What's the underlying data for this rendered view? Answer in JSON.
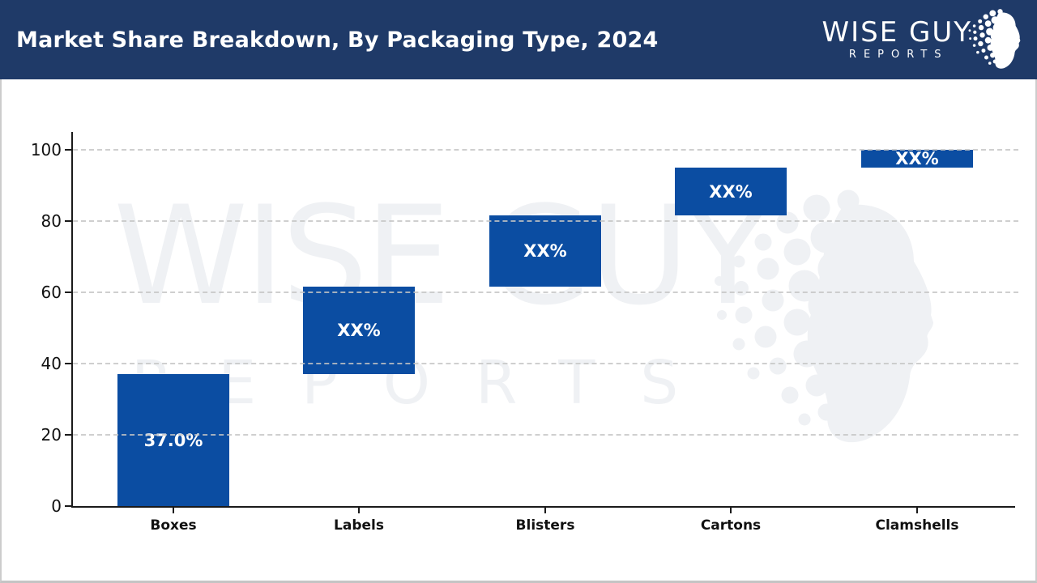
{
  "header": {
    "title": "Market Share Breakdown, By Packaging Type, 2024",
    "logo": {
      "line1": "WISE GUY",
      "line2": "REPORTS"
    }
  },
  "watermark": {
    "line1": "WISE GUY",
    "line2": "REPORTS"
  },
  "chart_data": {
    "type": "bar",
    "variant": "waterfall",
    "title": "Market Share Breakdown, By Packaging Type, 2024",
    "categories": [
      "Boxes",
      "Labels",
      "Blisters",
      "Cartons",
      "Clamshells"
    ],
    "segments": [
      {
        "category": "Boxes",
        "start": 0,
        "end": 37,
        "label": "37.0%"
      },
      {
        "category": "Labels",
        "start": 37,
        "end": 61.5,
        "label": "XX%"
      },
      {
        "category": "Blisters",
        "start": 61.5,
        "end": 81.5,
        "label": "XX%"
      },
      {
        "category": "Cartons",
        "start": 81.5,
        "end": 95,
        "label": "XX%"
      },
      {
        "category": "Clamshells",
        "start": 95,
        "end": 100,
        "label": "XX%"
      }
    ],
    "y_ticks": [
      0,
      20,
      40,
      60,
      80,
      100
    ],
    "ylim": [
      0,
      105
    ],
    "xlabel": "",
    "ylabel": "",
    "grid": "horizontal-dashed",
    "legend": "none",
    "bar_color": "#0b4da2",
    "connector_lines": false
  },
  "colors": {
    "header_bg": "#1f3a68",
    "bar": "#0b4da2",
    "axis": "#1a1a1a",
    "gridline": "#c5c5c5",
    "watermark": "#eff1f4",
    "frame_border": "#cccccc",
    "bar_label_text": "#ffffff",
    "tick_text": "#111111"
  }
}
